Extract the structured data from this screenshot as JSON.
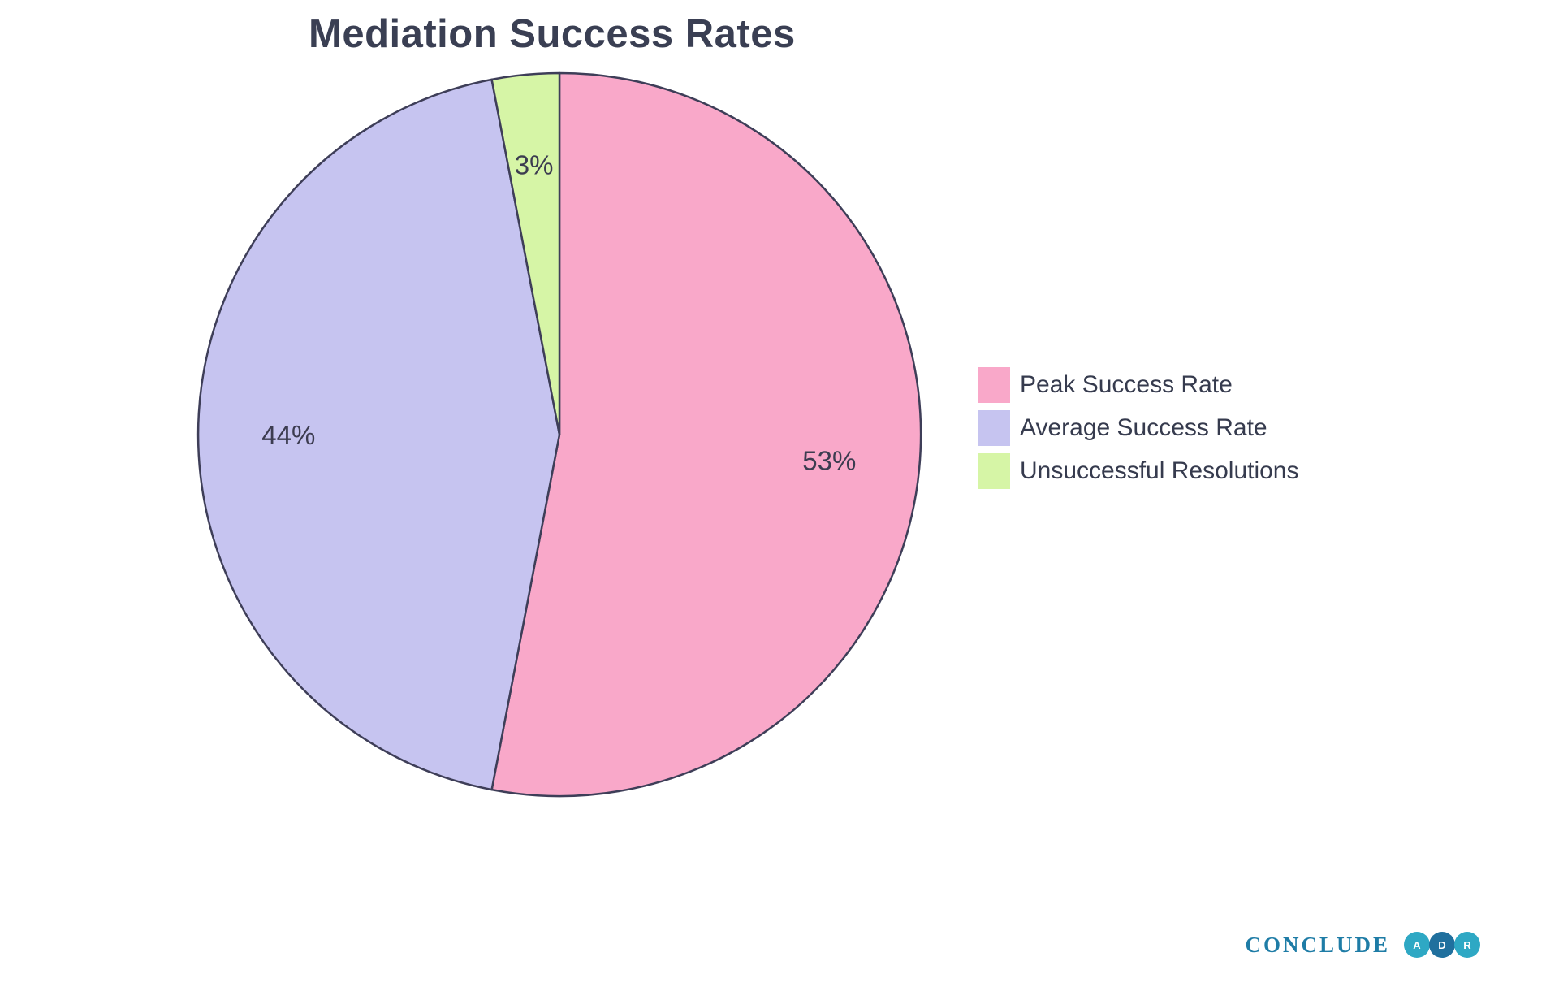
{
  "chart_data": {
    "type": "pie",
    "title": "Mediation Success Rates",
    "categories": [
      "Peak Success Rate",
      "Average Success Rate",
      "Unsuccessful Resolutions"
    ],
    "values": [
      53,
      44,
      3
    ],
    "labels": [
      "53%",
      "44%",
      "3%"
    ],
    "colors": [
      "#F9A8C9",
      "#C6C4F0",
      "#D6F5A6"
    ],
    "outline_color": "#3E3E58",
    "legend_position": "right",
    "start_angle_deg": 0,
    "direction": "clockwise"
  },
  "branding": {
    "name": "CONCLUDE",
    "badge_letters": [
      "A",
      "D",
      "R"
    ],
    "badge_colors": [
      "#2EA8C4",
      "#20709E",
      "#2EA8C4"
    ],
    "text_color": "#1E7CA6"
  }
}
